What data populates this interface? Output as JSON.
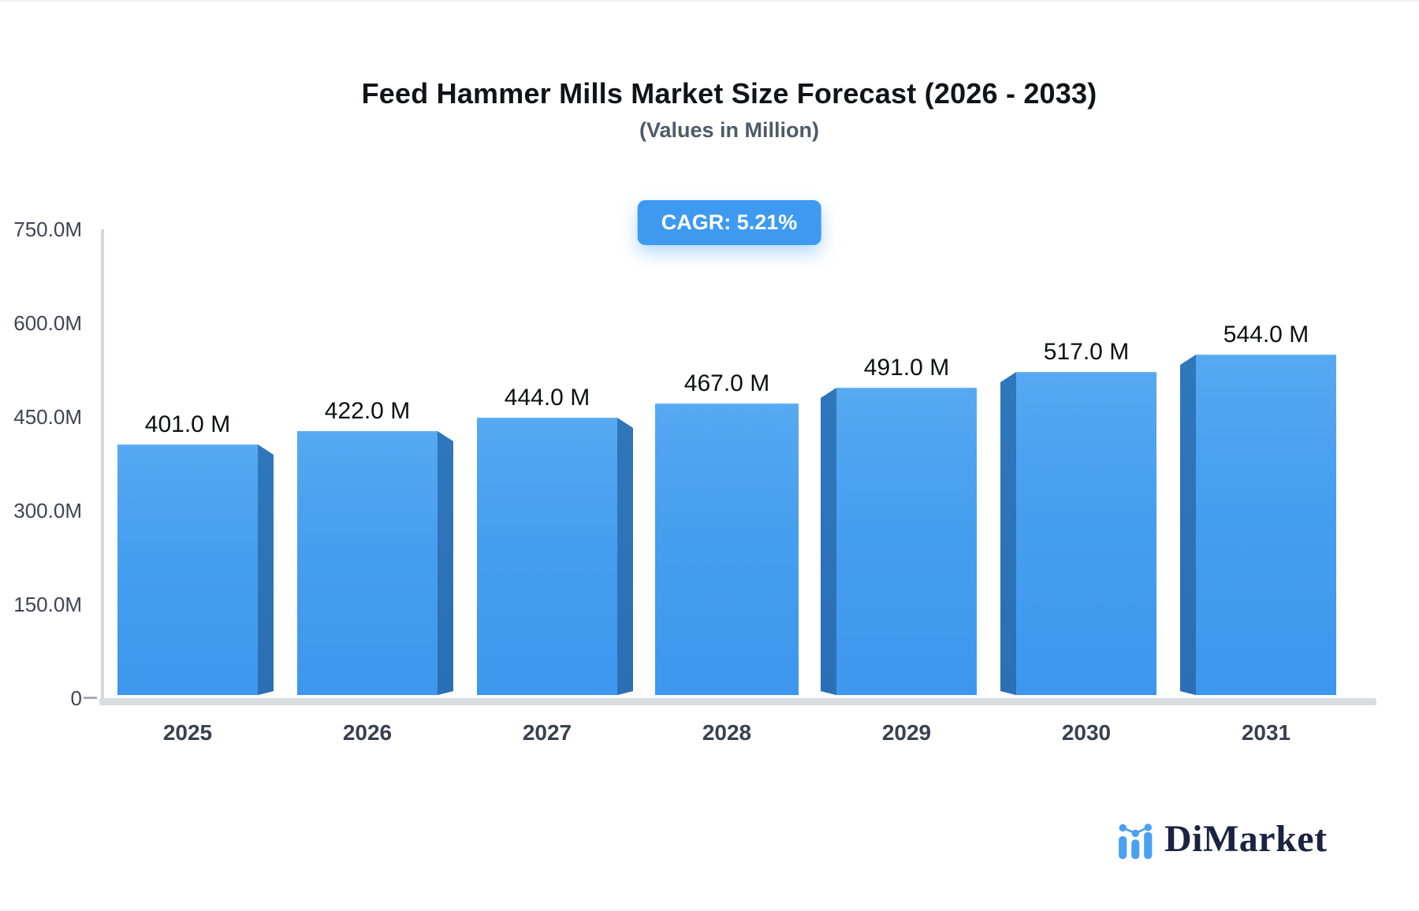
{
  "header": {
    "cagr_label": "CAGR: 5.21%"
  },
  "chart_data": {
    "type": "bar",
    "title": "Feed Hammer Mills Market Size Forecast (2026 - 2033)",
    "subtitle": "(Values in Million)",
    "unit": "Million",
    "cagr_percent": 5.21,
    "categories": [
      "2025",
      "2026",
      "2027",
      "2028",
      "2029",
      "2030",
      "2031"
    ],
    "values": [
      401,
      422,
      444,
      467,
      491,
      517,
      544
    ],
    "bar_value_labels": [
      "401.0 M",
      "422.0 M",
      "444.0 M",
      "467.0 M",
      "491.0 M",
      "517.0 M",
      "544.0 M"
    ],
    "y_axis": {
      "ticks": [
        {
          "label": "750.0M",
          "value": 750
        },
        {
          "label": "600.0M",
          "value": 600
        },
        {
          "label": "450.0M",
          "value": 450
        },
        {
          "label": "300.0M",
          "value": 300
        },
        {
          "label": "150.0M",
          "value": 150
        },
        {
          "label": "0",
          "value": 0
        }
      ],
      "range": [
        0,
        750
      ]
    },
    "grid": false,
    "legend": false,
    "style": "3d-perspective-columns",
    "colors": {
      "bar_face": "#459eef",
      "bar_side": "#2d73b8",
      "badge_background": "#3e9af0",
      "badge_text": "#ffffff",
      "axis": "#d6d7db",
      "floor": "#dbdce1",
      "value_label": "#0d0f13",
      "tick_label": "#3e4553",
      "title": "#101318",
      "subtitle": "#4e5a68"
    }
  },
  "branding": {
    "name": "DiMarket",
    "icon": "bar-chart-trend-icon",
    "icon_color": "#4aa0f2",
    "text_color": "#1a2342"
  }
}
